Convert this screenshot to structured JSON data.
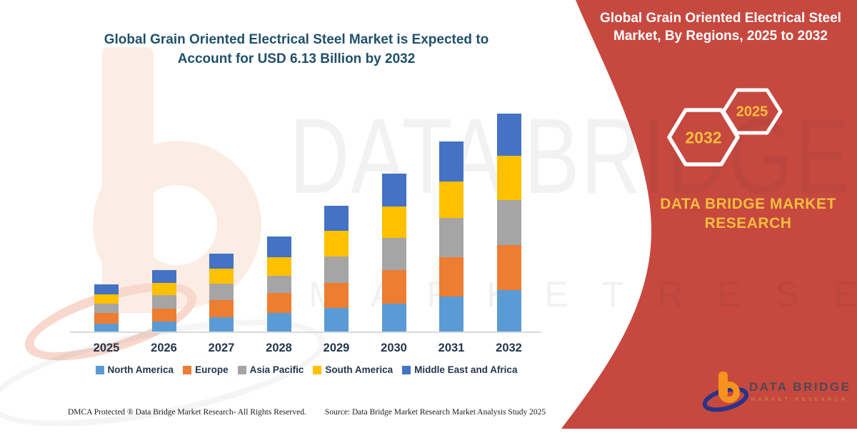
{
  "main": {
    "title_line1": "Global Grain Oriented Electrical Steel Market is Expected to",
    "title_line2": "Account for USD 6.13 Billion by 2032"
  },
  "chart_data": {
    "type": "bar",
    "stacked": true,
    "title": "Global Grain Oriented Electrical Steel Market is Expected to Account for USD 6.13 Billion by 2032",
    "xlabel": "",
    "ylabel": "",
    "grid": false,
    "legend_position": "bottom",
    "y_axis_shown": false,
    "unit": "USD billion (estimated from bar heights; total 2032 = 6.13)",
    "categories": [
      "2025",
      "2026",
      "2027",
      "2028",
      "2029",
      "2030",
      "2031",
      "2032"
    ],
    "series": [
      {
        "name": "North America",
        "color": "#5B9BD5",
        "values": [
          0.25,
          0.31,
          0.43,
          0.55,
          0.68,
          0.8,
          1.0,
          1.18
        ]
      },
      {
        "name": "Europe",
        "color": "#ED7D31",
        "values": [
          0.29,
          0.35,
          0.47,
          0.56,
          0.7,
          0.94,
          1.1,
          1.26
        ]
      },
      {
        "name": "Asia Pacific",
        "color": "#A5A5A5",
        "values": [
          0.27,
          0.38,
          0.47,
          0.47,
          0.74,
          0.9,
          1.1,
          1.26
        ]
      },
      {
        "name": "South America",
        "color": "#FFC000",
        "values": [
          0.25,
          0.35,
          0.42,
          0.52,
          0.72,
          0.88,
          1.02,
          1.24
        ]
      },
      {
        "name": "Middle East and Africa",
        "color": "#4472C4",
        "values": [
          0.29,
          0.35,
          0.41,
          0.59,
          0.7,
          0.92,
          1.12,
          1.19
        ]
      }
    ],
    "totals_estimated": [
      1.35,
      1.74,
      2.2,
      2.69,
      3.54,
      4.44,
      5.34,
      6.13
    ]
  },
  "panel": {
    "bg_color": "#C7483F",
    "accent_yellow": "#F5BE3D",
    "title_line1": "Global Grain Oriented Electrical Steel",
    "title_line2": "Market, By Regions, 2025 to 2032",
    "hexagon_large_label": "2032",
    "hexagon_small_label": "2025",
    "brand_line1": "DATA BRIDGE MARKET",
    "brand_line2": "RESEARCH"
  },
  "watermark": {
    "text_line1": "DATA BRIDGE",
    "text_line2": "M A R K E T   R E S E A R C H"
  },
  "logo": {
    "name_text": "DATA BRIDGE",
    "sub_text": "MARKET RESEARCH"
  },
  "footer": {
    "left_text": "DMCA Protected ® Data Bridge Market Research-  All Rights Reserved.",
    "right_text": "Source: Data Bridge Market Research  Market Analysis Study 2025"
  }
}
